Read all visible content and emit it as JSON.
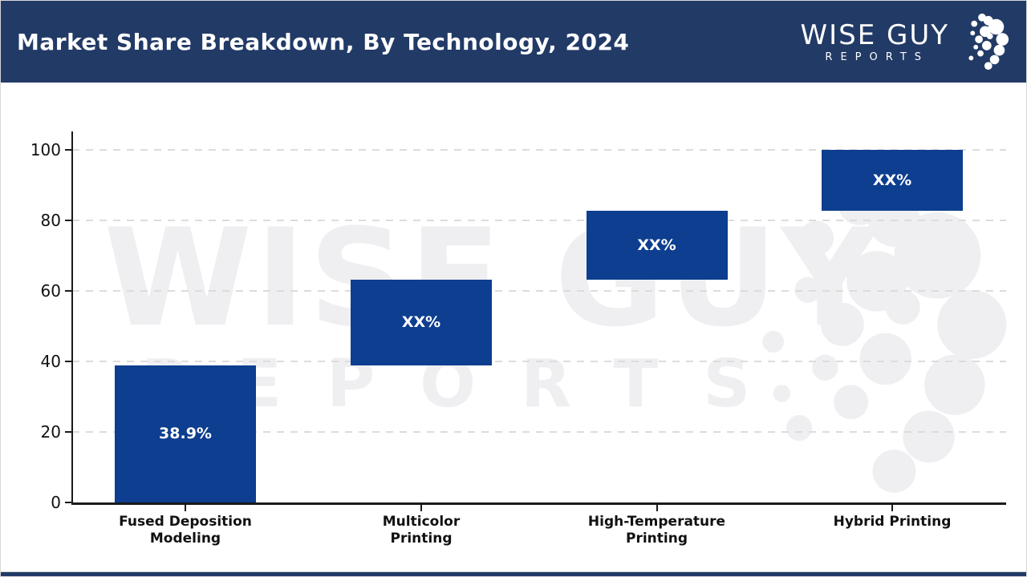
{
  "header": {
    "title": "Market Share Breakdown, By Technology, 2024",
    "bg_color": "#223a66",
    "logo": {
      "line1": "WISE GUY",
      "line2": "REPORTS"
    }
  },
  "watermark": {
    "line1": "WISE GUY",
    "line2": "REPORTS"
  },
  "chart_data": {
    "type": "bar",
    "subtype": "waterfall",
    "title": "Market Share Breakdown, By Technology, 2024",
    "categories": [
      "Fused Deposition\nModeling",
      "Multicolor\nPrinting",
      "High-Temperature\nPrinting",
      "Hybrid Printing"
    ],
    "bars": [
      {
        "category": "Fused Deposition Modeling",
        "slug": "fused-deposition-modeling",
        "start": 0,
        "end": 38.9,
        "value": 38.9,
        "label": "38.9%"
      },
      {
        "category": "Multicolor Printing",
        "slug": "multicolor-printing",
        "start": 38.9,
        "end": 63.2,
        "value": 24.3,
        "label": "XX%"
      },
      {
        "category": "High-Temperature Printing",
        "slug": "high-temperature-printing",
        "start": 63.2,
        "end": 82.7,
        "value": 19.5,
        "label": "XX%"
      },
      {
        "category": "Hybrid Printing",
        "slug": "hybrid-printing",
        "start": 82.7,
        "end": 100,
        "value": 17.3,
        "label": "XX%"
      }
    ],
    "bar_color": "#0d3e8f",
    "yticks": [
      0,
      20,
      40,
      60,
      80,
      100
    ],
    "ylim": [
      0,
      100
    ],
    "grid": "horizontal-dashed",
    "legend_position": "none",
    "xlabel": "",
    "ylabel": ""
  },
  "colors": {
    "header_bg": "#223a66",
    "footer_bg": "#223a66",
    "bar_blue": "#0d3e8f",
    "watermark_gray": "#efeff2",
    "gridline_gray": "#dcdcdc"
  }
}
